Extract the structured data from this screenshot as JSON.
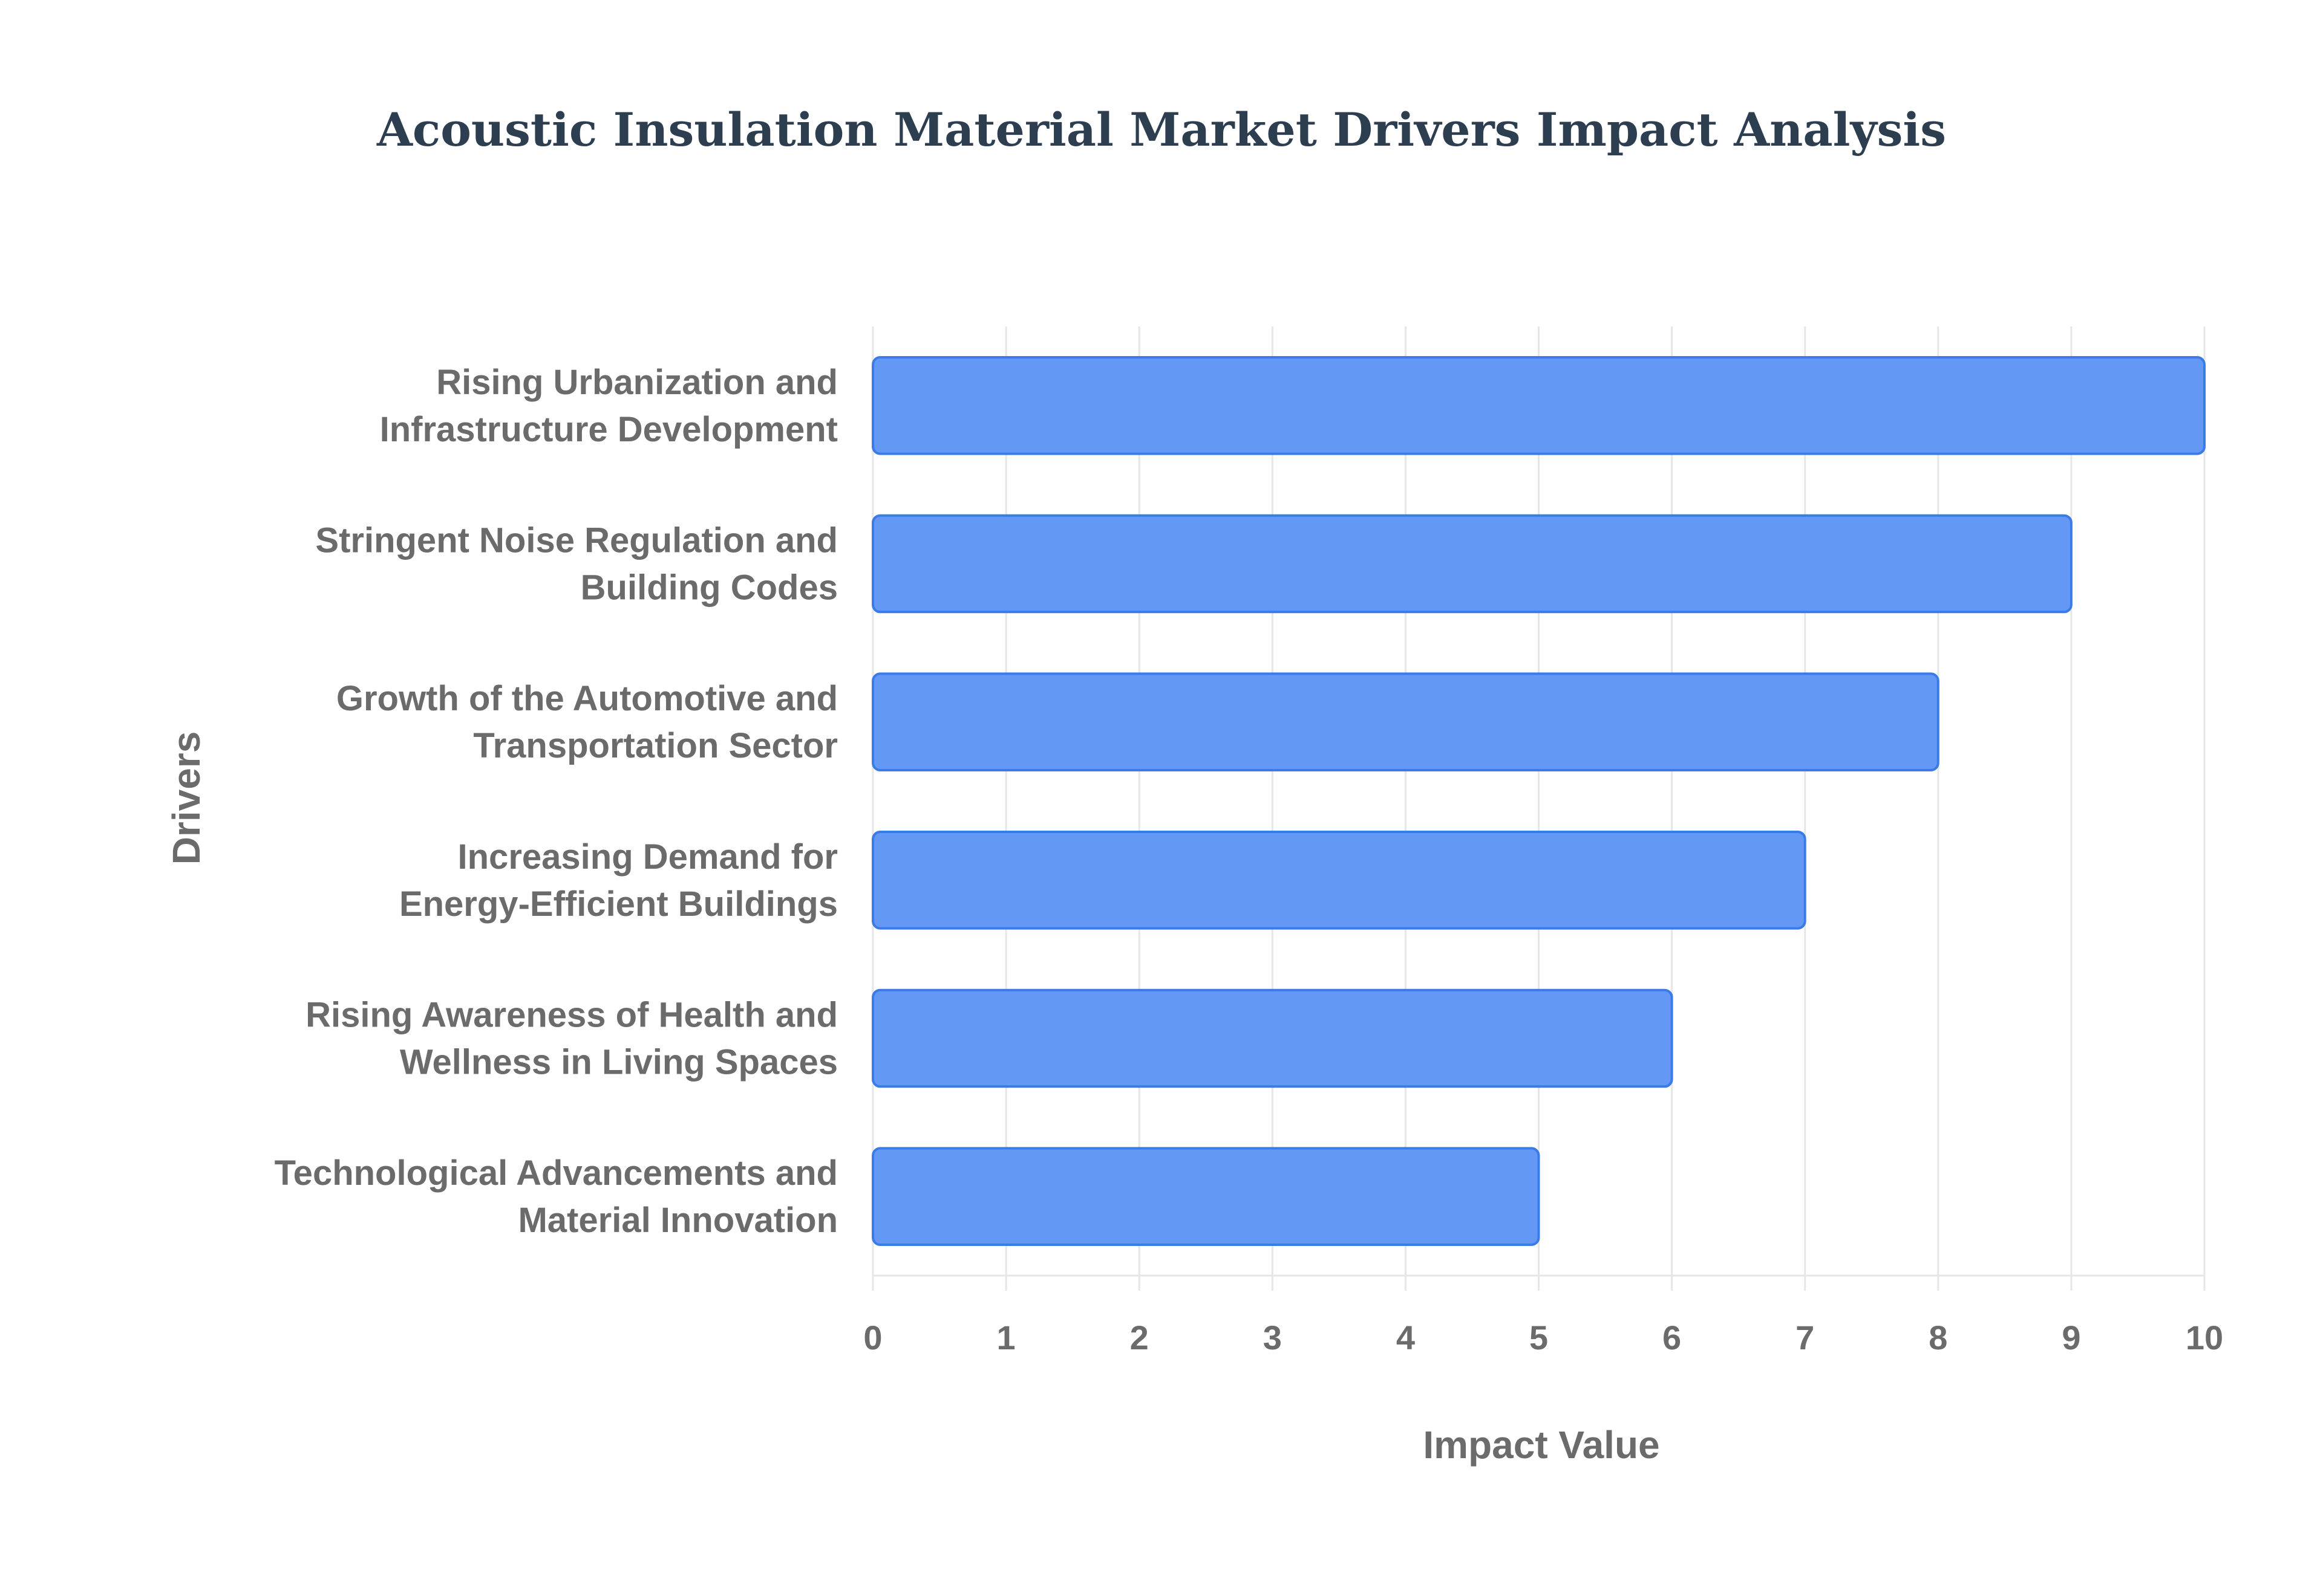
{
  "chart_data": {
    "type": "bar",
    "orientation": "horizontal",
    "title": "Acoustic Insulation Material Market Drivers Impact Analysis",
    "xlabel": "Impact Value",
    "ylabel": "Drivers",
    "xlim": [
      0,
      10
    ],
    "x_ticks": [
      0,
      1,
      2,
      3,
      4,
      5,
      6,
      7,
      8,
      9,
      10
    ],
    "grid": true,
    "bar_color": "#6399f4",
    "bar_edge_color": "#3b7be8",
    "categories": [
      [
        "Rising Urbanization and",
        "Infrastructure Development"
      ],
      [
        "Stringent Noise Regulation and",
        "Building Codes"
      ],
      [
        "Growth of the Automotive and",
        "Transportation Sector"
      ],
      [
        "Increasing Demand for",
        "Energy-Efficient Buildings"
      ],
      [
        "Rising Awareness of Health and",
        "Wellness in Living Spaces"
      ],
      [
        "Technological Advancements and",
        "Material Innovation"
      ]
    ],
    "values": [
      10,
      9,
      8,
      7,
      6,
      5
    ]
  }
}
